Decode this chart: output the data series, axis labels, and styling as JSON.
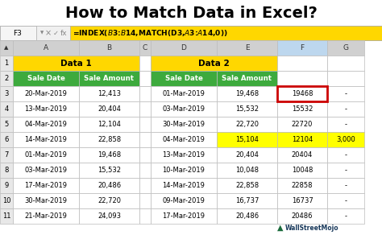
{
  "title": "How to Match Data in Excel?",
  "formula_bar_cell": "F3",
  "formula_bar_formula": "=INDEX($B$3:$B$14,MATCH(D3,$A$3:$A$14,0))",
  "data1_header": "Data 1",
  "data2_header": "Data 2",
  "data1": [
    [
      "20-Mar-2019",
      "12,413"
    ],
    [
      "13-Mar-2019",
      "20,404"
    ],
    [
      "04-Mar-2019",
      "12,104"
    ],
    [
      "14-Mar-2019",
      "22,858"
    ],
    [
      "01-Mar-2019",
      "19,468"
    ],
    [
      "03-Mar-2019",
      "15,532"
    ],
    [
      "17-Mar-2019",
      "20,486"
    ],
    [
      "30-Mar-2019",
      "22,720"
    ],
    [
      "21-Mar-2019",
      "24,093"
    ]
  ],
  "data2": [
    [
      "01-Mar-2019",
      "19,468"
    ],
    [
      "03-Mar-2019",
      "15,532"
    ],
    [
      "30-Mar-2019",
      "22,720"
    ],
    [
      "04-Mar-2019",
      "15,104"
    ],
    [
      "13-Mar-2019",
      "20,404"
    ],
    [
      "10-Mar-2019",
      "10,048"
    ],
    [
      "14-Mar-2019",
      "22,858"
    ],
    [
      "09-Mar-2019",
      "16,737"
    ],
    [
      "17-Mar-2019",
      "20,486"
    ]
  ],
  "col_f": [
    "19468",
    "15532",
    "22720",
    "12104",
    "20404",
    "10048",
    "22858",
    "16737",
    "20486"
  ],
  "col_g": [
    "-",
    "-",
    "-",
    "3,000",
    "-",
    "-",
    "-",
    "-",
    "-"
  ],
  "bg_color": "#FFFFFF",
  "header_bg": "#FFD700",
  "subheader_bg": "#3DAA3D",
  "grid_line_color": "#BBBBBB",
  "formula_bar_bg": "#FFD700",
  "col_header_bg": "#D0D0D0",
  "row_num_bg": "#E8E8E8",
  "f_selected_bg": "#BDD7EE"
}
